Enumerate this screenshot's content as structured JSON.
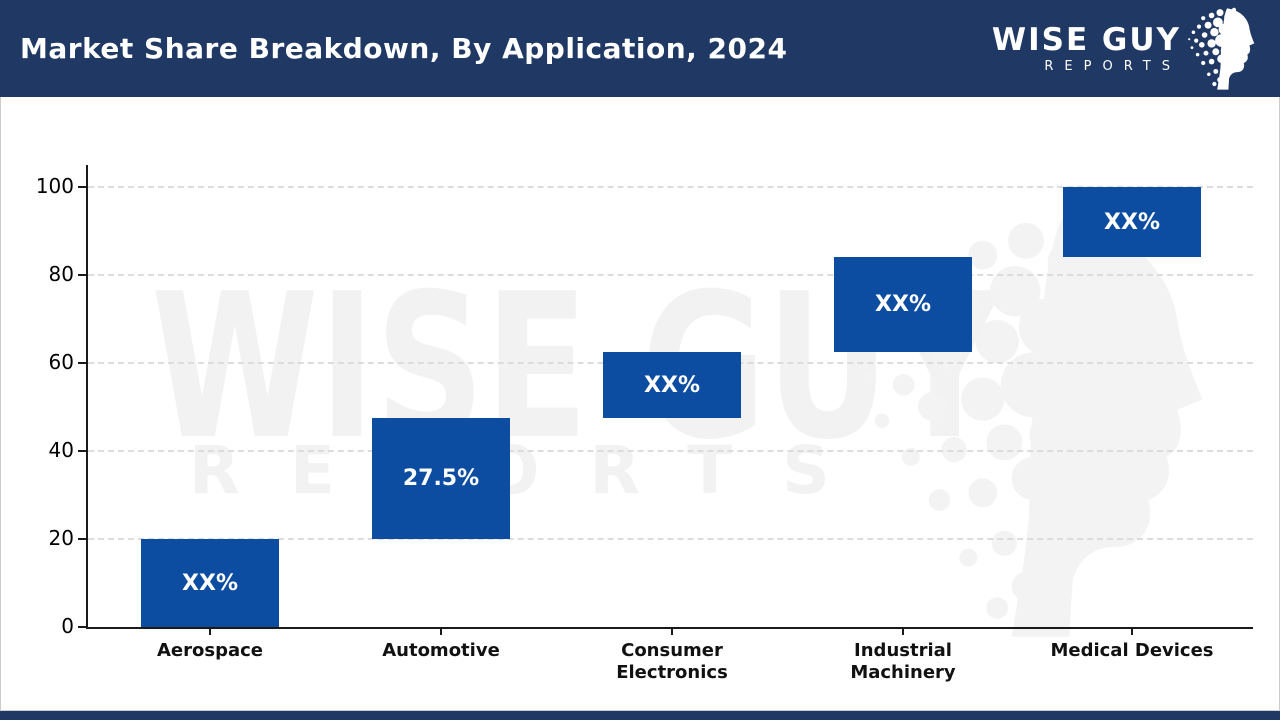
{
  "header": {
    "title": "Market Share Breakdown, By Application, 2024",
    "logo": {
      "name": "WISE GUY",
      "sub": "REPORTS"
    }
  },
  "watermark": {
    "name": "WISE GUY",
    "sub": "REPORTS"
  },
  "colors": {
    "header_bg": "#1f3864",
    "footer_bg": "#1f3864",
    "bar": "#0c4da2",
    "bar_label": "#ffffff",
    "grid": "#dcdcdc",
    "axis": "#1a1a1a",
    "tick_label": "#000000",
    "category_label": "#111111",
    "watermark": "#f2f2f2"
  },
  "chart_data": {
    "type": "bar",
    "subtype": "waterfall",
    "title": "Market Share Breakdown, By Application, 2024",
    "categories": [
      "Aerospace",
      "Automotive",
      "Consumer Electronics",
      "Industrial Machinery",
      "Medical Devices"
    ],
    "segments": [
      {
        "category": "Aerospace",
        "start": 0,
        "end": 20,
        "label": "XX%"
      },
      {
        "category": "Automotive",
        "start": 20,
        "end": 47.5,
        "label": "27.5%"
      },
      {
        "category": "Consumer Electronics",
        "start": 47.5,
        "end": 62.5,
        "label": "XX%"
      },
      {
        "category": "Industrial Machinery",
        "start": 62.5,
        "end": 84,
        "label": "XX%"
      },
      {
        "category": "Medical Devices",
        "start": 84,
        "end": 100,
        "label": "XX%"
      }
    ],
    "y_ticks": [
      0,
      20,
      40,
      60,
      80,
      100
    ],
    "ylim": [
      0,
      100
    ],
    "xlabel": "",
    "ylabel": "",
    "legend": null,
    "grid": "horizontal-dashed"
  }
}
